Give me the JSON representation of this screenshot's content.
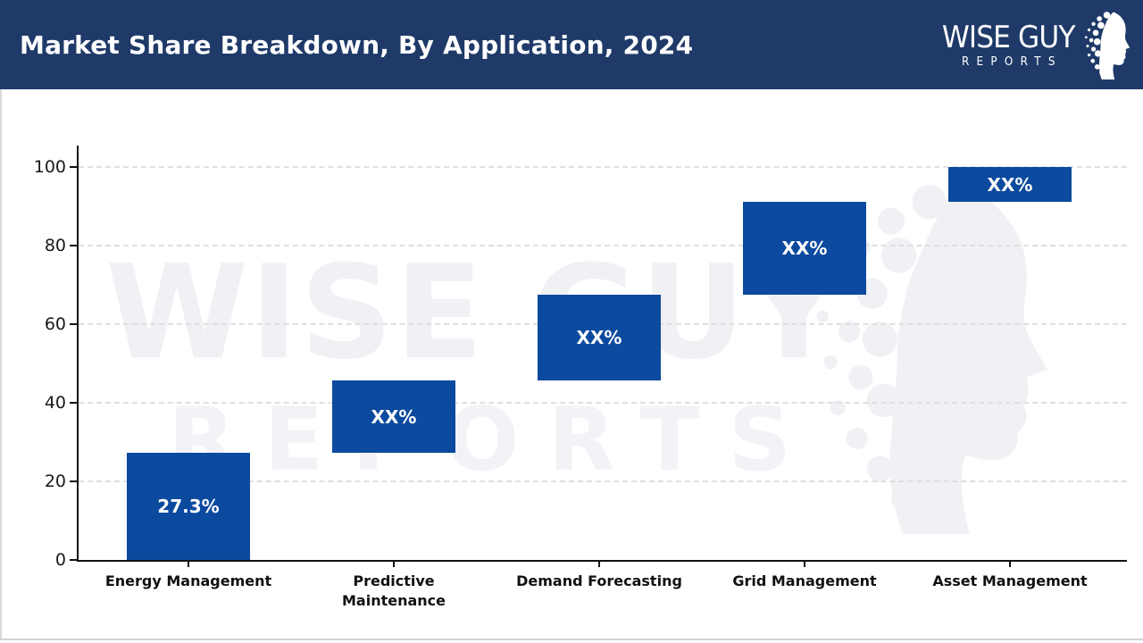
{
  "header": {
    "title": "Market Share Breakdown, By Application, 2024",
    "bg_color": "#1f3a68",
    "logo": {
      "line1": "WISE GUY",
      "line2": "REPORTS"
    }
  },
  "watermark": {
    "line1": "WISE GUY",
    "line2": "REPORTS"
  },
  "chart_data": {
    "type": "bar",
    "subtype": "waterfall",
    "title": "Market Share Breakdown, By Application, 2024",
    "categories": [
      "Energy Management",
      "Predictive Maintenance",
      "Demand Forecasting",
      "Grid Management",
      "Asset Management"
    ],
    "segments": [
      {
        "category": "Energy Management",
        "label": "27.3%",
        "start": 0,
        "end": 27.3
      },
      {
        "category": "Predictive Maintenance",
        "label": "XX%",
        "start": 27.3,
        "end": 45.6
      },
      {
        "category": "Demand Forecasting",
        "label": "XX%",
        "start": 45.6,
        "end": 67.5
      },
      {
        "category": "Grid Management",
        "label": "XX%",
        "start": 67.5,
        "end": 91.1
      },
      {
        "category": "Asset Management",
        "label": "XX%",
        "start": 91.1,
        "end": 100
      }
    ],
    "yticks": [
      0,
      20,
      40,
      60,
      80,
      100
    ],
    "ylim": [
      0,
      100
    ],
    "xlabel": "",
    "ylabel": "",
    "grid": "horizontal-dashed",
    "legend": "none",
    "bar_color": "#0b4a9e",
    "bar_label_color": "#ffffff"
  }
}
